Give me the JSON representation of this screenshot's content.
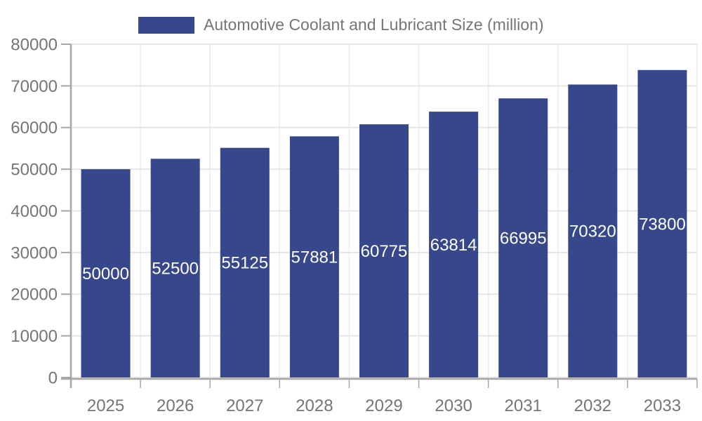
{
  "legend": {
    "label": "Automotive Coolant and Lubricant Size (million)"
  },
  "chart_data": {
    "type": "bar",
    "title": "Automotive Coolant and Lubricant Size (million)",
    "categories": [
      "2025",
      "2026",
      "2027",
      "2028",
      "2029",
      "2030",
      "2031",
      "2032",
      "2033"
    ],
    "values": [
      50000,
      52500,
      55125,
      57881,
      60775,
      63814,
      66995,
      70320,
      73800
    ],
    "xlabel": "",
    "ylabel": "",
    "ylim": [
      0,
      80000
    ],
    "yticks": [
      0,
      10000,
      20000,
      30000,
      40000,
      50000,
      60000,
      70000,
      80000
    ],
    "grid": true,
    "legend_position": "top",
    "value_label_position": "inside-center",
    "colors": {
      "bar": "#37478C",
      "value_label": "#ffffff",
      "axis": "#a6a6a6",
      "grid_h": "#e5e5e5",
      "grid_v": "#ebebeb",
      "tick_label": "#757575",
      "legend_text": "#757575"
    }
  }
}
